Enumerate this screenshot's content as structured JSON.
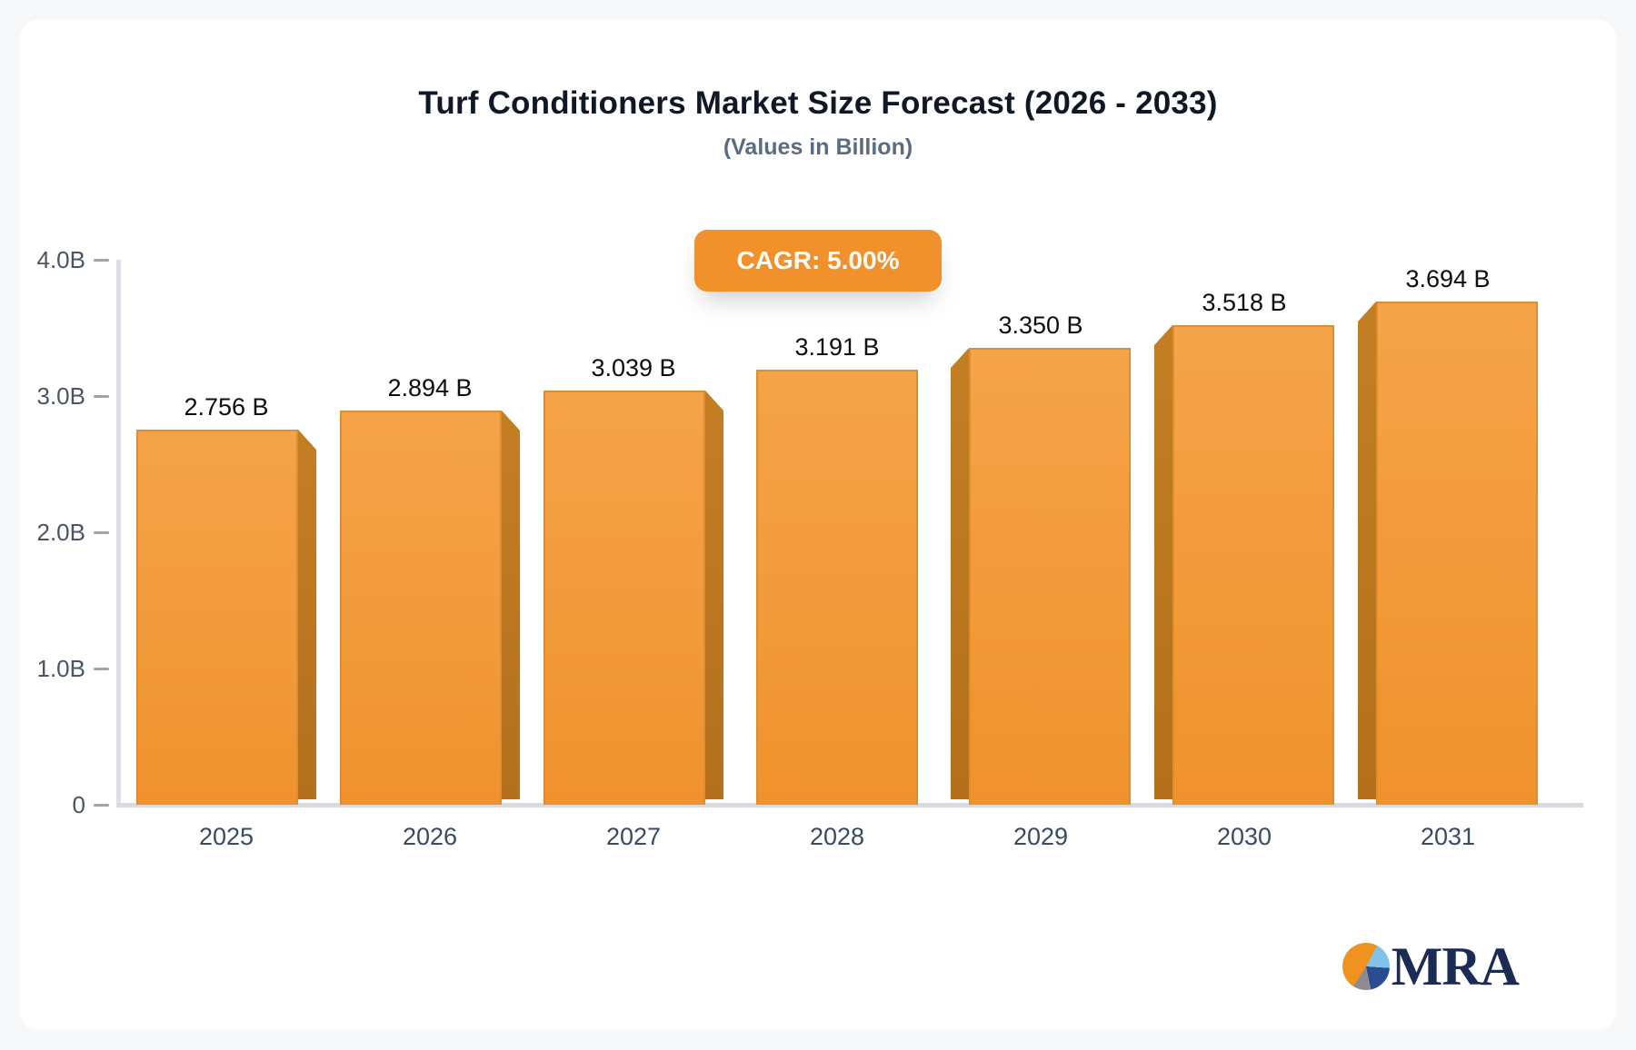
{
  "title": "Turf Conditioners Market Size Forecast (2026 - 2033)",
  "subtitle": "(Values in Billion)",
  "badge": {
    "label": "CAGR: 5.00%",
    "color": "#f0912c"
  },
  "chart_data": {
    "type": "bar",
    "categories": [
      "2025",
      "2026",
      "2027",
      "2028",
      "2029",
      "2030",
      "2031"
    ],
    "values": [
      2.756,
      2.894,
      3.039,
      3.191,
      3.35,
      3.518,
      3.694
    ],
    "value_labels": [
      "2.756 B",
      "2.894 B",
      "3.039 B",
      "3.191 B",
      "3.350 B",
      "3.518 B",
      "3.694 B"
    ],
    "title": "Turf Conditioners Market Size Forecast (2026 - 2033)",
    "subtitle": "(Values in Billion)",
    "xlabel": "",
    "ylabel": "",
    "ylim": [
      0,
      4.0
    ],
    "yticks": [
      {
        "value": 4.0,
        "label": "4.0B"
      },
      {
        "value": 3.0,
        "label": "3.0B"
      },
      {
        "value": 2.0,
        "label": "2.0B"
      },
      {
        "value": 1.0,
        "label": "1.0B"
      },
      {
        "value": 0.0,
        "label": "0"
      }
    ],
    "grid": false,
    "legend": "none",
    "bar_color": "#f29a3a",
    "bar_side_color": "#bc7720",
    "style": "pseudo-3d, side panels face center vanishing point"
  },
  "logo": {
    "text": "MRA",
    "pie_colors": [
      "#f0921f",
      "#82c2e9",
      "#2a4d92",
      "#8f8a94"
    ]
  }
}
